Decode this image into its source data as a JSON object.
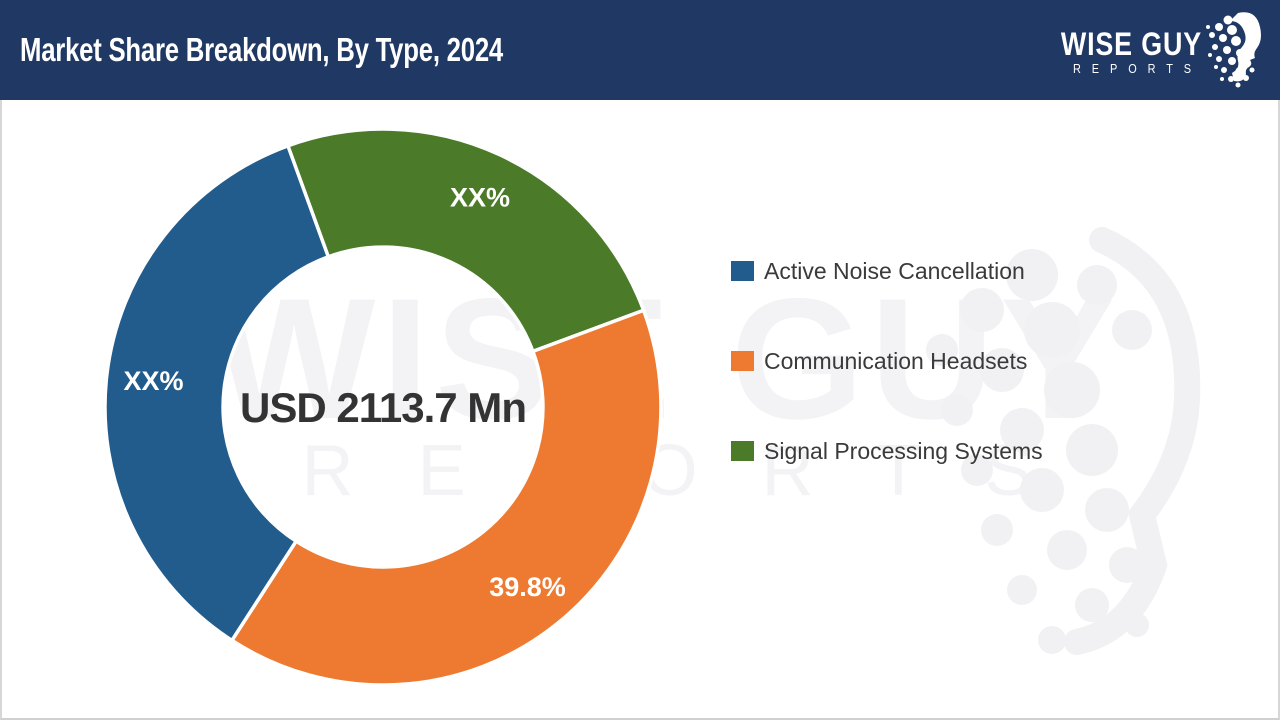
{
  "header": {
    "title": "Market Share Breakdown, By Type, 2024",
    "logo": {
      "line1": "WISE GUY",
      "line2": "REPORTS"
    }
  },
  "chart_data": {
    "type": "pie",
    "subtype": "donut",
    "title": "Market Share Breakdown, By Type, 2024",
    "center_label": "USD 2113.7 Mn",
    "rotation_deg": -20,
    "donut_hole_ratio": 0.575,
    "outer_radius": 278,
    "label_radius": 231,
    "legend_position": "right",
    "segments": [
      {
        "name": "Signal Processing Systems",
        "value": 24.9,
        "display_label": "XX%",
        "color": "#4b7a28"
      },
      {
        "name": "Communication Headsets",
        "value": 39.8,
        "display_label": "39.8%",
        "color": "#ed7a30"
      },
      {
        "name": "Active Noise Cancellation",
        "value": 35.3,
        "display_label": "XX%",
        "color": "#215c8c"
      }
    ]
  },
  "legend": {
    "items": [
      {
        "label": "Active Noise Cancellation",
        "color": "#215c8c"
      },
      {
        "label": "Communication Headsets",
        "color": "#ed7a30"
      },
      {
        "label": "Signal Processing Systems",
        "color": "#4b7a28"
      }
    ]
  },
  "watermark": {
    "line1": "WISE GUY",
    "line2": "REPORTS"
  },
  "colors": {
    "header_bg": "#1f3864",
    "content_bg": "#ffffff",
    "watermark": "#f3f3f5",
    "center_text": "#333333",
    "border": "#d7d7d7"
  }
}
